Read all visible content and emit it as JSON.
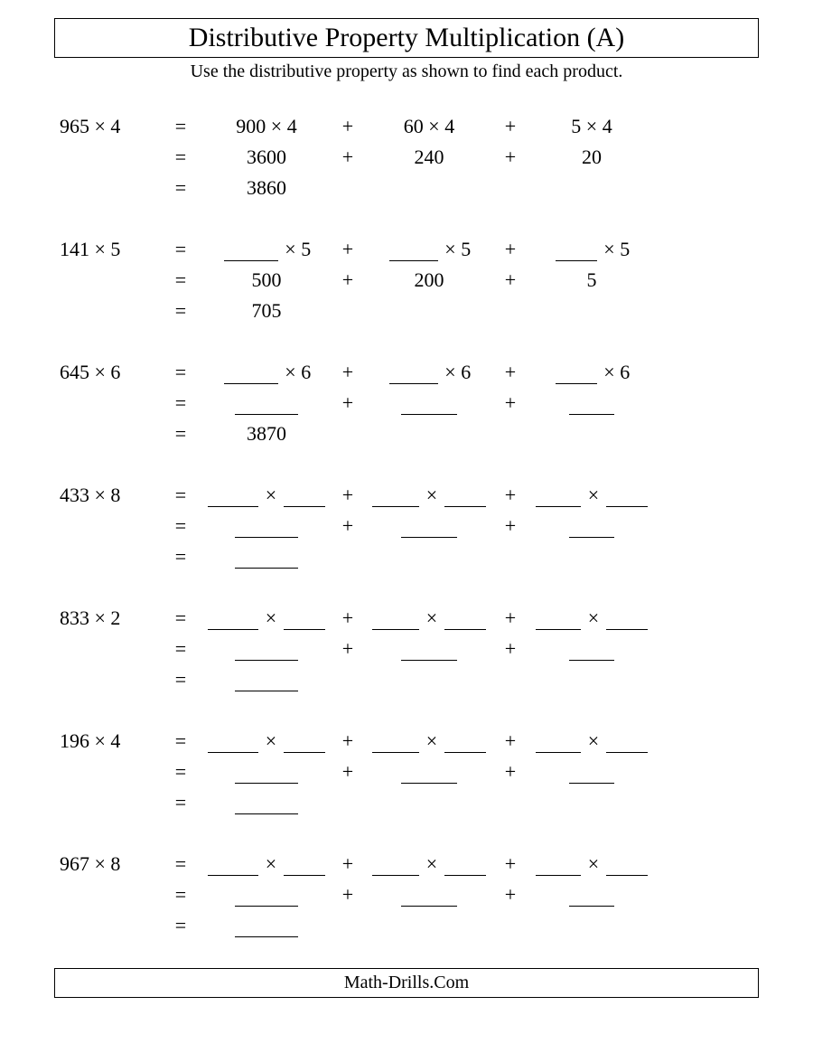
{
  "title": "Distributive Property Multiplication (A)",
  "subtitle": "Use the distributive property as shown to find each product.",
  "footer": "Math-Drills.Com",
  "blank_widths": {
    "wide": 60,
    "med": 54,
    "narrow": 46
  },
  "mult": "×",
  "plus": "+",
  "eq": "=",
  "problems": [
    {
      "q": "965 × 4",
      "line1": {
        "a": {
          "type": "text",
          "val": "900 × 4"
        },
        "b": {
          "type": "text",
          "val": "60 × 4"
        },
        "c": {
          "type": "text",
          "val": "5 × 4"
        }
      },
      "line2": {
        "a": {
          "type": "text",
          "val": "3600"
        },
        "b": {
          "type": "text",
          "val": "240"
        },
        "c": {
          "type": "text",
          "val": "20"
        }
      },
      "line3": {
        "a": {
          "type": "text",
          "val": "3860"
        }
      }
    },
    {
      "q": "141 × 5",
      "line1": {
        "a": {
          "type": "blankmult",
          "rhs": "5",
          "w": 60
        },
        "b": {
          "type": "blankmult",
          "rhs": "5",
          "w": 54
        },
        "c": {
          "type": "blankmult",
          "rhs": "5",
          "w": 46
        }
      },
      "line2": {
        "a": {
          "type": "text",
          "val": "500"
        },
        "b": {
          "type": "text",
          "val": "200"
        },
        "c": {
          "type": "text",
          "val": "5"
        }
      },
      "line3": {
        "a": {
          "type": "text",
          "val": "705"
        }
      }
    },
    {
      "q": "645 × 6",
      "line1": {
        "a": {
          "type": "blankmult",
          "rhs": "6",
          "w": 60
        },
        "b": {
          "type": "blankmult",
          "rhs": "6",
          "w": 54
        },
        "c": {
          "type": "blankmult",
          "rhs": "6",
          "w": 46
        }
      },
      "line2": {
        "a": {
          "type": "blank",
          "w": 70
        },
        "b": {
          "type": "blank",
          "w": 62
        },
        "c": {
          "type": "blank",
          "w": 50
        }
      },
      "line3": {
        "a": {
          "type": "text",
          "val": "3870"
        }
      }
    },
    {
      "q": "433 × 8",
      "line1": {
        "a": {
          "type": "twoblank",
          "w1": 56,
          "w2": 46
        },
        "b": {
          "type": "twoblank",
          "w1": 52,
          "w2": 46
        },
        "c": {
          "type": "twoblank",
          "w1": 50,
          "w2": 46
        }
      },
      "line2": {
        "a": {
          "type": "blank",
          "w": 70
        },
        "b": {
          "type": "blank",
          "w": 62
        },
        "c": {
          "type": "blank",
          "w": 50
        }
      },
      "line3": {
        "a": {
          "type": "blank",
          "w": 70
        }
      }
    },
    {
      "q": "833 × 2",
      "line1": {
        "a": {
          "type": "twoblank",
          "w1": 56,
          "w2": 46
        },
        "b": {
          "type": "twoblank",
          "w1": 52,
          "w2": 46
        },
        "c": {
          "type": "twoblank",
          "w1": 50,
          "w2": 46
        }
      },
      "line2": {
        "a": {
          "type": "blank",
          "w": 70
        },
        "b": {
          "type": "blank",
          "w": 62
        },
        "c": {
          "type": "blank",
          "w": 50
        }
      },
      "line3": {
        "a": {
          "type": "blank",
          "w": 70
        }
      }
    },
    {
      "q": "196 × 4",
      "line1": {
        "a": {
          "type": "twoblank",
          "w1": 56,
          "w2": 46
        },
        "b": {
          "type": "twoblank",
          "w1": 52,
          "w2": 46
        },
        "c": {
          "type": "twoblank",
          "w1": 50,
          "w2": 46
        }
      },
      "line2": {
        "a": {
          "type": "blank",
          "w": 70
        },
        "b": {
          "type": "blank",
          "w": 62
        },
        "c": {
          "type": "blank",
          "w": 50
        }
      },
      "line3": {
        "a": {
          "type": "blank",
          "w": 70
        }
      }
    },
    {
      "q": "967 × 8",
      "line1": {
        "a": {
          "type": "twoblank",
          "w1": 56,
          "w2": 46
        },
        "b": {
          "type": "twoblank",
          "w1": 52,
          "w2": 46
        },
        "c": {
          "type": "twoblank",
          "w1": 50,
          "w2": 46
        }
      },
      "line2": {
        "a": {
          "type": "blank",
          "w": 70
        },
        "b": {
          "type": "blank",
          "w": 62
        },
        "c": {
          "type": "blank",
          "w": 50
        }
      },
      "line3": {
        "a": {
          "type": "blank",
          "w": 70
        }
      }
    }
  ]
}
